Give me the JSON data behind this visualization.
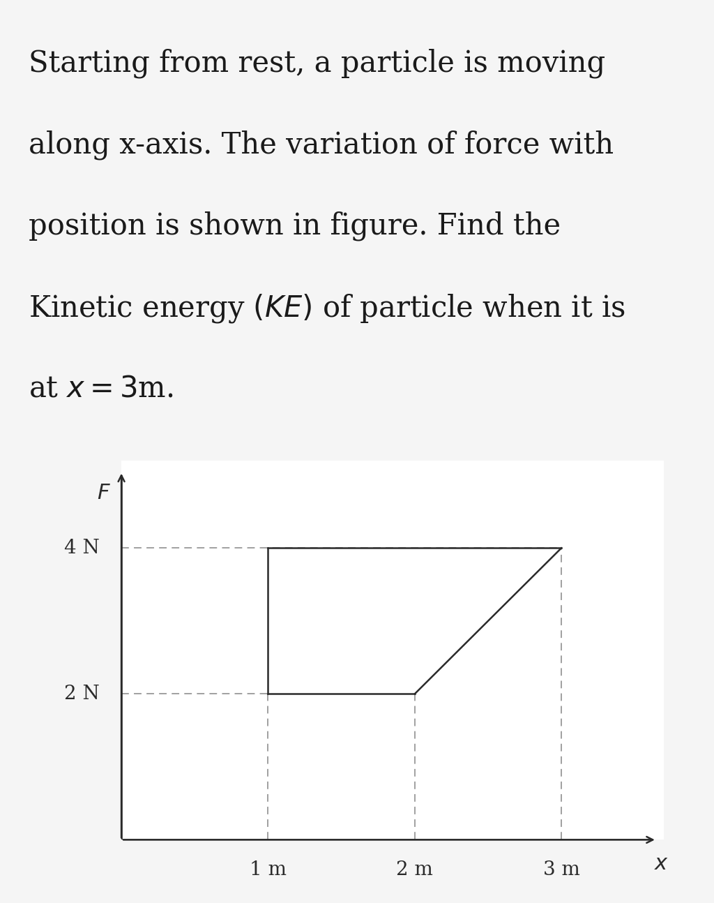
{
  "background_color": "#f5f5f5",
  "graph_bg": "#ffffff",
  "text_color": "#1a1a1a",
  "graph_line_color": "#2a2a2a",
  "dashed_line_color": "#999999",
  "text_lines": [
    "Starting from rest, a particle is moving",
    "along x-axis. The variation of force with",
    "position is shown in figure. Find the",
    "Kinetic energy $(KE)$ of particle when it is",
    "at $x = 3$m."
  ],
  "text_fontsize": 30,
  "x_label": "$x$",
  "y_label": "$F$",
  "x_ticks": [
    1,
    2,
    3
  ],
  "x_tick_labels": [
    "1 m",
    "2 m",
    "3 m"
  ],
  "y_ticks": [
    2,
    4
  ],
  "y_tick_labels": [
    "2 N",
    "4 N"
  ],
  "xlim": [
    0,
    3.7
  ],
  "ylim": [
    0,
    5.2
  ],
  "fig_width": 10.24,
  "fig_height": 12.94
}
